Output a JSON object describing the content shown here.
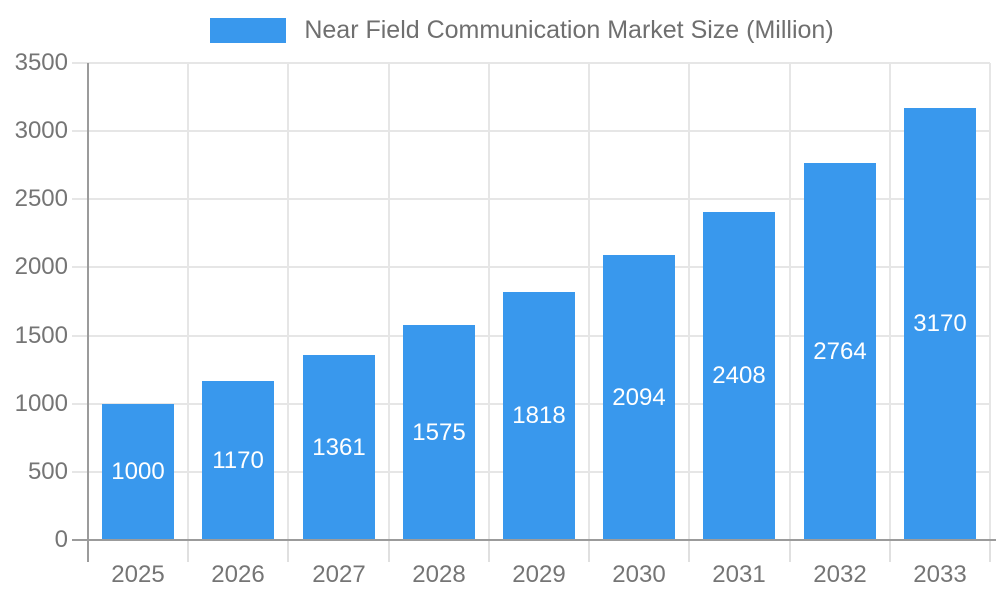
{
  "chart_data": {
    "type": "bar",
    "title": "Near Field Communication Market Size (Million)",
    "categories": [
      "2025",
      "2026",
      "2027",
      "2028",
      "2029",
      "2030",
      "2031",
      "2032",
      "2033"
    ],
    "values": [
      1000,
      1170,
      1361,
      1575,
      1818,
      2094,
      2408,
      2764,
      3170
    ],
    "xlabel": "",
    "ylabel": "",
    "ylim": [
      0,
      3500
    ],
    "yticks": [
      0,
      500,
      1000,
      1500,
      2000,
      2500,
      3000,
      3500
    ],
    "grid": true,
    "legend_position": "top",
    "bar_labels_inside": true,
    "colors": {
      "bar": "#3998ED",
      "bar_label": "#FFFFFF",
      "axis_line": "#9B9B9B",
      "gridline": "#E6E6E6",
      "tick": "#E0E0E0",
      "axis_text": "#757575",
      "legend_text": "#6F6F6F",
      "background": "#FFFFFF"
    }
  }
}
